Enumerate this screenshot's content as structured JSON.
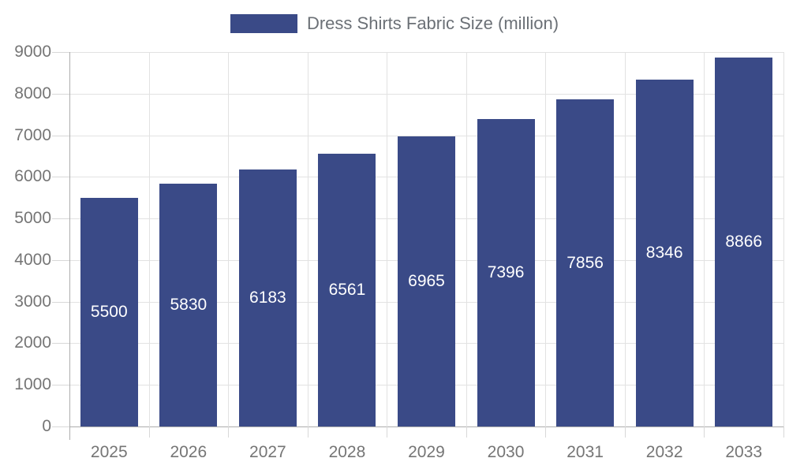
{
  "chart_data": {
    "type": "bar",
    "title": "",
    "legend_label": "Dress Shirts Fabric Size (million)",
    "legend_position": "top-center",
    "categories": [
      "2025",
      "2026",
      "2027",
      "2028",
      "2029",
      "2030",
      "2031",
      "2032",
      "2033"
    ],
    "values": [
      5500,
      5830,
      6183,
      6561,
      6965,
      7396,
      7856,
      8346,
      8866
    ],
    "xlabel": "",
    "ylabel": "",
    "ylim": [
      0,
      9000
    ],
    "y_ticks": [
      0,
      1000,
      2000,
      3000,
      4000,
      5000,
      6000,
      7000,
      8000,
      9000
    ],
    "grid": "on"
  },
  "colors": {
    "bar": "#3A4A87",
    "bar_value_label": "#FFFFFF",
    "grid_line": "#E2E2E2",
    "axis_line": "#ADADAD",
    "tick_line": "#D8D8D8",
    "axis_text": "#757575",
    "legend_text": "#6B7076",
    "background": "#FFFFFF"
  }
}
